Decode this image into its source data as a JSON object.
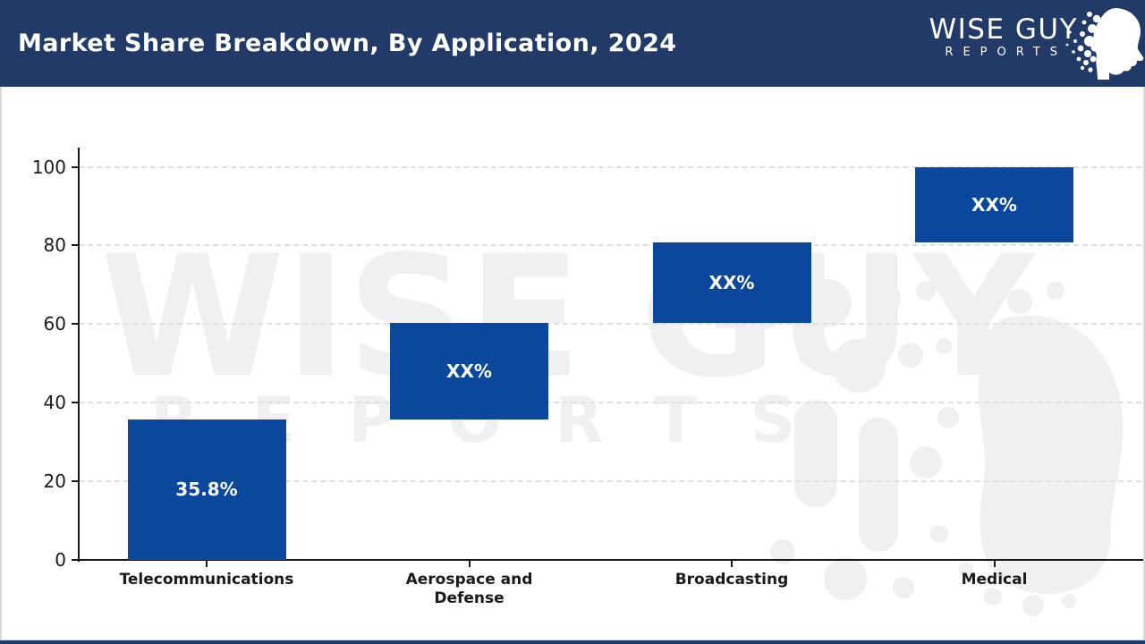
{
  "header": {
    "title": "Market Share Breakdown, By Application, 2024",
    "logo_line1": "WISE GUY",
    "logo_line2": "REPORTS"
  },
  "watermark": {
    "line1": "WISE GUY",
    "line2": "REPORTS"
  },
  "colors": {
    "header_bg": "#223a67",
    "bar_fill": "#0c479e",
    "bar_label": "#ffffff",
    "grid_line": "#e0e0e0",
    "axis_line": "#1a1a1a",
    "tick_label": "#1a1a1a",
    "watermark": "#f0f0f2",
    "footer_bar": "#223a67"
  },
  "chart_data": {
    "type": "bar",
    "subtype": "waterfall",
    "title": "Market Share Breakdown, By Application, 2024",
    "categories": [
      "Telecommunications",
      "Aerospace and Defense",
      "Broadcasting",
      "Medical"
    ],
    "category_label_lines": [
      [
        "Telecommunications"
      ],
      [
        "Aerospace and",
        "Defense"
      ],
      [
        "Broadcasting"
      ],
      [
        "Medical"
      ]
    ],
    "segments": [
      {
        "category": "Telecommunications",
        "start": 0,
        "end": 35.8,
        "label": "35.8%"
      },
      {
        "category": "Aerospace and Defense",
        "start": 35.8,
        "end": 60.2,
        "label": "XX%"
      },
      {
        "category": "Broadcasting",
        "start": 60.2,
        "end": 80.8,
        "label": "XX%"
      },
      {
        "category": "Medical",
        "start": 80.8,
        "end": 100,
        "label": "XX%"
      }
    ],
    "xlabel": "",
    "ylabel": "",
    "ylim": [
      0,
      100
    ],
    "yticks": [
      0,
      20,
      40,
      60,
      80,
      100
    ],
    "grid": "horizontal-dashed",
    "legend": "none",
    "bar_color": "#0c479e",
    "value_label_color": "#ffffff"
  }
}
